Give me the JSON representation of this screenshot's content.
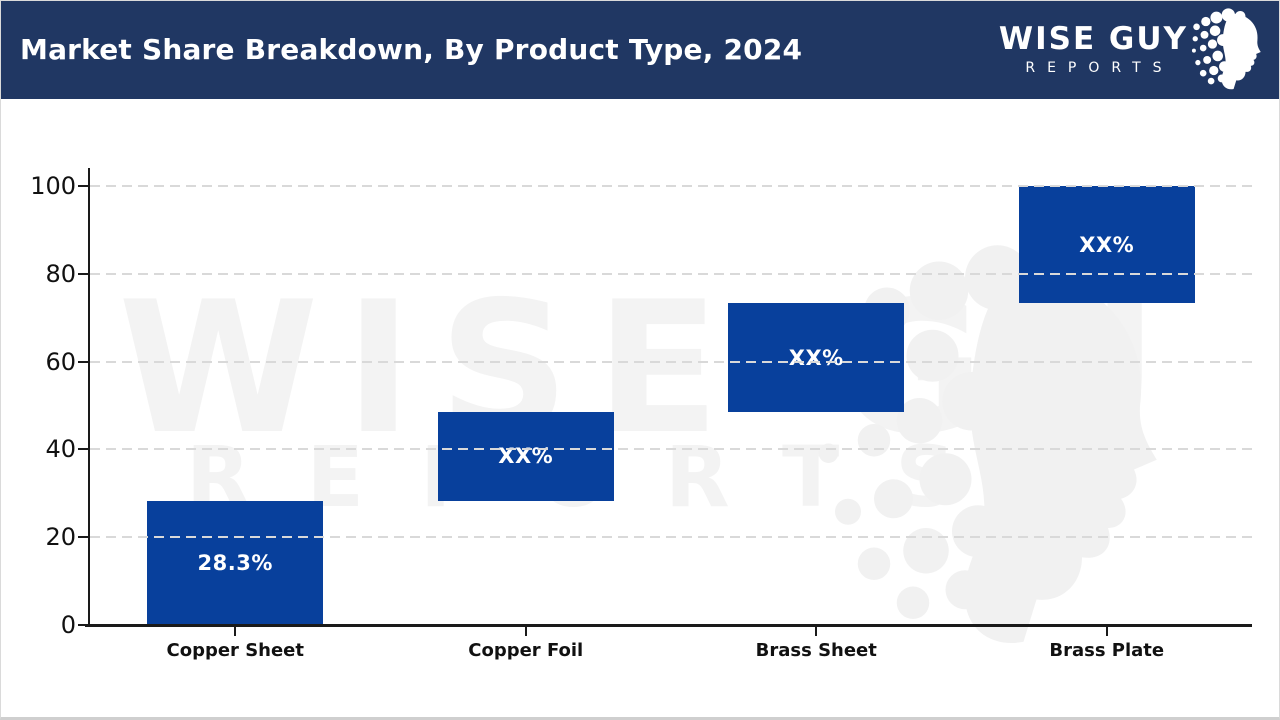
{
  "header": {
    "title": "Market Share Breakdown, By Product Type, 2024",
    "bg_color": "#203763",
    "logo": {
      "line1": "WISE GUY",
      "line2": "REPORTS"
    }
  },
  "watermark": {
    "line1": "WISE GU",
    "line2": "REPORTS"
  },
  "chart_data": {
    "type": "bar",
    "subtype": "waterfall-floating-bars",
    "title": "Market Share Breakdown, By Product Type, 2024",
    "categories": [
      "Copper Sheet",
      "Copper Foil",
      "Brass Sheet",
      "Brass Plate"
    ],
    "series": [
      {
        "name": "Market share (%)",
        "segments": [
          {
            "category": "Copper Sheet",
            "start": 0,
            "end": 28.3,
            "label": "28.3%"
          },
          {
            "category": "Copper Foil",
            "start": 28.3,
            "end": 48.5,
            "label": "XX%"
          },
          {
            "category": "Brass Sheet",
            "start": 48.5,
            "end": 73.3,
            "label": "XX%"
          },
          {
            "category": "Brass Plate",
            "start": 73.3,
            "end": 100,
            "label": "XX%"
          }
        ]
      }
    ],
    "ylim": [
      0,
      100
    ],
    "yticks": [
      0,
      20,
      40,
      60,
      80,
      100
    ],
    "grid": "horizontal-dashed",
    "grid_color": "#d9d9d9",
    "bar_color": "#08409c",
    "bar_label_color": "#ffffff",
    "axis_color": "#1a1a1a"
  }
}
